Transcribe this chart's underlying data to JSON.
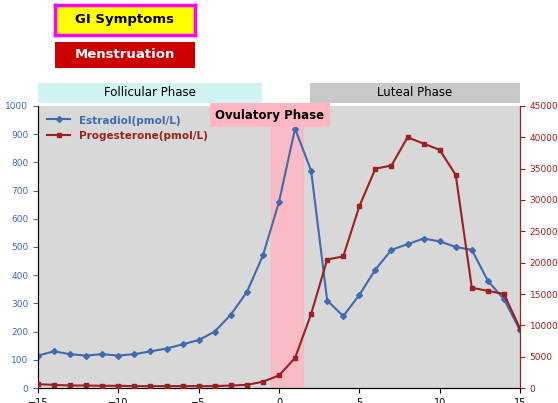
{
  "estradiol_x": [
    -15,
    -14,
    -13,
    -12,
    -11,
    -10,
    -9,
    -8,
    -7,
    -6,
    -5,
    -4,
    -3,
    -2,
    -1,
    0,
    1,
    2,
    3,
    4,
    5,
    6,
    7,
    8,
    9,
    10,
    11,
    12,
    13,
    14,
    15
  ],
  "estradiol_y": [
    115,
    130,
    120,
    115,
    120,
    115,
    120,
    130,
    140,
    155,
    170,
    200,
    260,
    340,
    470,
    660,
    920,
    770,
    310,
    255,
    330,
    420,
    490,
    510,
    530,
    520,
    500,
    490,
    380,
    315,
    205
  ],
  "progesterone_x": [
    -15,
    -14,
    -13,
    -12,
    -11,
    -10,
    -9,
    -8,
    -7,
    -6,
    -5,
    -4,
    -3,
    -2,
    -1,
    0,
    1,
    2,
    3,
    4,
    5,
    6,
    7,
    8,
    9,
    10,
    11,
    12,
    13,
    14,
    15
  ],
  "progesterone_y": [
    600,
    500,
    400,
    400,
    350,
    350,
    300,
    300,
    300,
    300,
    300,
    300,
    400,
    500,
    1000,
    2000,
    4800,
    11800,
    20500,
    21000,
    29000,
    35000,
    35500,
    40000,
    39000,
    38000,
    34000,
    16000,
    15500,
    15000,
    9500
  ],
  "estradiol_color": "#4169b0",
  "progesterone_color": "#9b2020",
  "bg_plot": "#d8d8d8",
  "ovulatory_color": "#ffb6c1",
  "ovulatory_x_start": -0.5,
  "ovulatory_x_end": 1.5,
  "xlim": [
    -15,
    15
  ],
  "ylim_left": [
    0,
    1000
  ],
  "ylim_right": [
    0,
    45000
  ],
  "xticks": [
    -15,
    -10,
    -5,
    0,
    5,
    10,
    15
  ],
  "yticks_left": [
    0,
    100,
    200,
    300,
    400,
    500,
    600,
    700,
    800,
    900,
    1000
  ],
  "yticks_right": [
    0,
    5000,
    10000,
    15000,
    20000,
    25000,
    30000,
    35000,
    40000,
    45000
  ],
  "gi_label": "GI Symptoms",
  "gi_bg": "#ffff00",
  "gi_border": "#ff00ff",
  "menstruation_label": "Menstruation",
  "menstruation_bg": "#cc0000",
  "menstruation_text_color": "#ffffff",
  "follicular_label": "Follicular Phase",
  "follicular_bg": "#cff2f2",
  "luteal_label": "Luteal Phase",
  "luteal_bg": "#c8c8c8",
  "ovulatory_label": "Ovulatory Phase",
  "ovulatory_label_bg": "#ffb6c1",
  "legend_estradiol": "Estradiol(pmol/L)",
  "legend_progesterone": "Progesterone(pmol/L)"
}
